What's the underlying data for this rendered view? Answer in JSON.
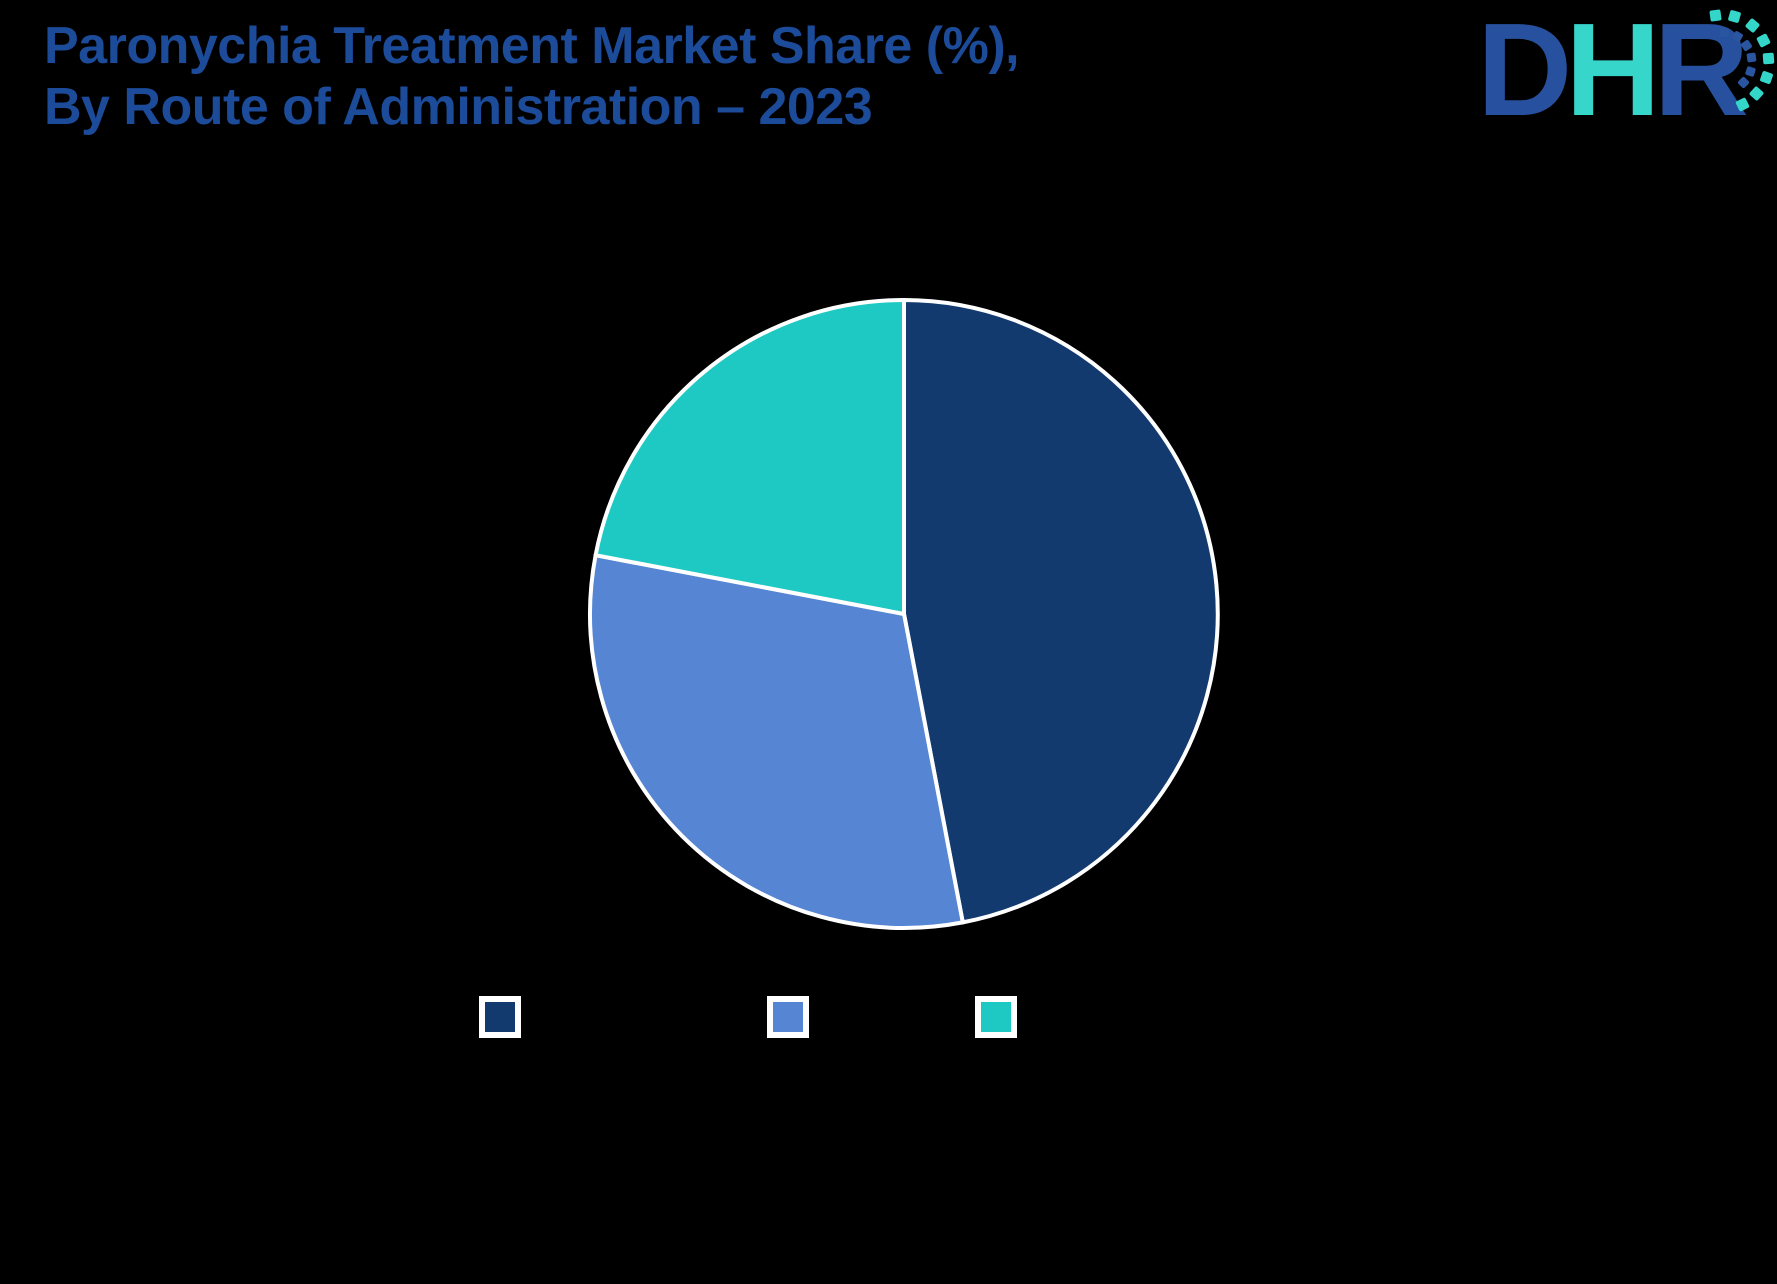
{
  "colors": {
    "background": "#000000",
    "title": "#1c4b9a",
    "pie_stroke": "#ffffff",
    "navy": "#123a6f",
    "blue": "#5585d3",
    "teal": "#1fc9c3"
  },
  "header": {
    "title_line1": "Paronychia Treatment Market Share (%),",
    "title_line2": "By Route of Administration – 2023"
  },
  "logo": {
    "letters": [
      {
        "char": "D",
        "color": "#27519e"
      },
      {
        "char": "H",
        "color": "#36d6ca"
      },
      {
        "char": "R",
        "color": "#27519e"
      }
    ],
    "dot_colors": {
      "blue": "#2a55a0",
      "teal": "#35d6ca"
    }
  },
  "chart_data": {
    "type": "pie",
    "title": "Paronychia Treatment Market Share (%), By Route of Administration – 2023",
    "start_angle_deg": 0,
    "direction": "clockwise",
    "percent_labels_visible": false,
    "slices": [
      {
        "label": "",
        "value": 47,
        "color": "#123a6f"
      },
      {
        "label": "",
        "value": 31,
        "color": "#5585d3"
      },
      {
        "label": "",
        "value": 22,
        "color": "#1fc9c3"
      }
    ],
    "legend_position": "bottom",
    "legend_labels_visible": false
  },
  "legend": {
    "items": [
      {
        "label": "",
        "color": "#123a6f"
      },
      {
        "label": "",
        "color": "#5585d3"
      },
      {
        "label": "",
        "color": "#1fc9c3"
      }
    ]
  }
}
